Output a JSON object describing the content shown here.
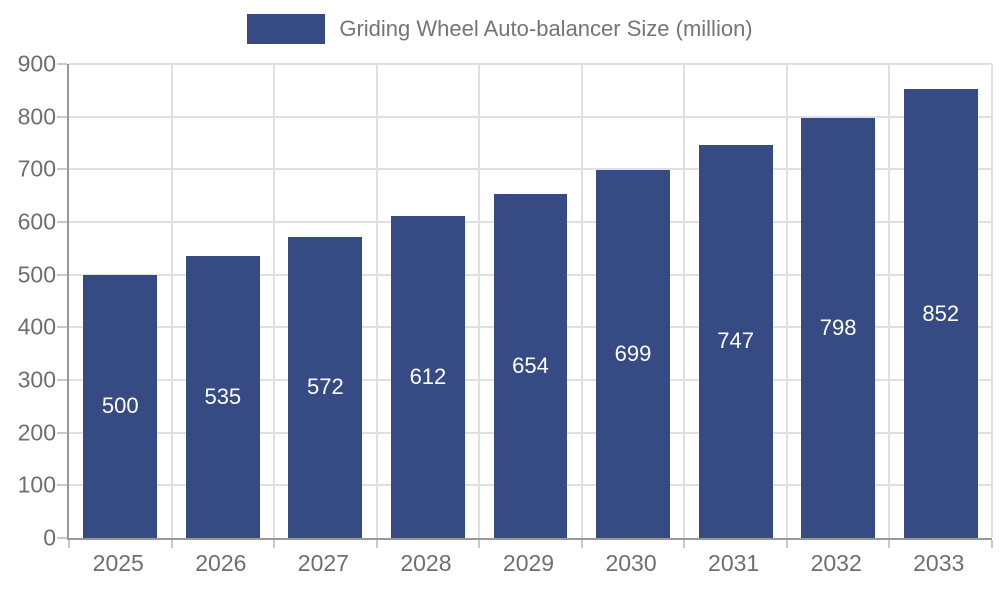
{
  "page": {
    "background_color": "#ffffff"
  },
  "legend": {
    "label": "Griding Wheel Auto-balancer Size (million)",
    "swatch_color": "#364A84",
    "text_color": "#757575",
    "position": "top-center"
  },
  "chart_data": {
    "type": "bar",
    "title": "",
    "xlabel": "",
    "ylabel": "",
    "categories": [
      "2025",
      "2026",
      "2027",
      "2028",
      "2029",
      "2030",
      "2031",
      "2032",
      "2033"
    ],
    "series": [
      {
        "name": "Griding Wheel Auto-balancer Size (million)",
        "values": [
          500,
          535,
          572,
          612,
          654,
          699,
          747,
          798,
          852
        ],
        "color": "#364A84"
      }
    ],
    "value_labels": {
      "visible": true,
      "color": "#ffffff",
      "position": "inside-center"
    },
    "ylim": [
      0,
      900
    ],
    "yticks": [
      0,
      100,
      200,
      300,
      400,
      500,
      600,
      700,
      800,
      900
    ],
    "grid": true,
    "grid_color": "#E0E0E0",
    "axis_line_color": "#999999",
    "tick_color": "#C9C9C9",
    "axis_label_color": "#6E6E6E",
    "bar_width_ratio": 0.72,
    "legend_position": "top"
  }
}
